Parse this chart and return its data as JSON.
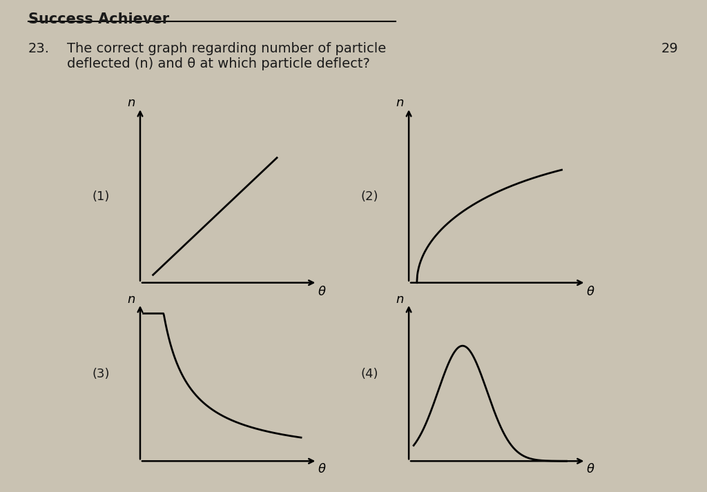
{
  "title": "Success Achiever",
  "question_num": "23.",
  "question_text": "The correct graph regarding number of particle\ndeflected (n) and θ at which particle deflect?",
  "background_color": "#c9c2b2",
  "text_color": "#1a1a1a",
  "graph_labels": [
    "(1)",
    "(2)",
    "(3)",
    "(4)"
  ],
  "axis_label_x": "θ",
  "axis_label_y": "n",
  "line_width": 2.0,
  "arrow_size": 10
}
